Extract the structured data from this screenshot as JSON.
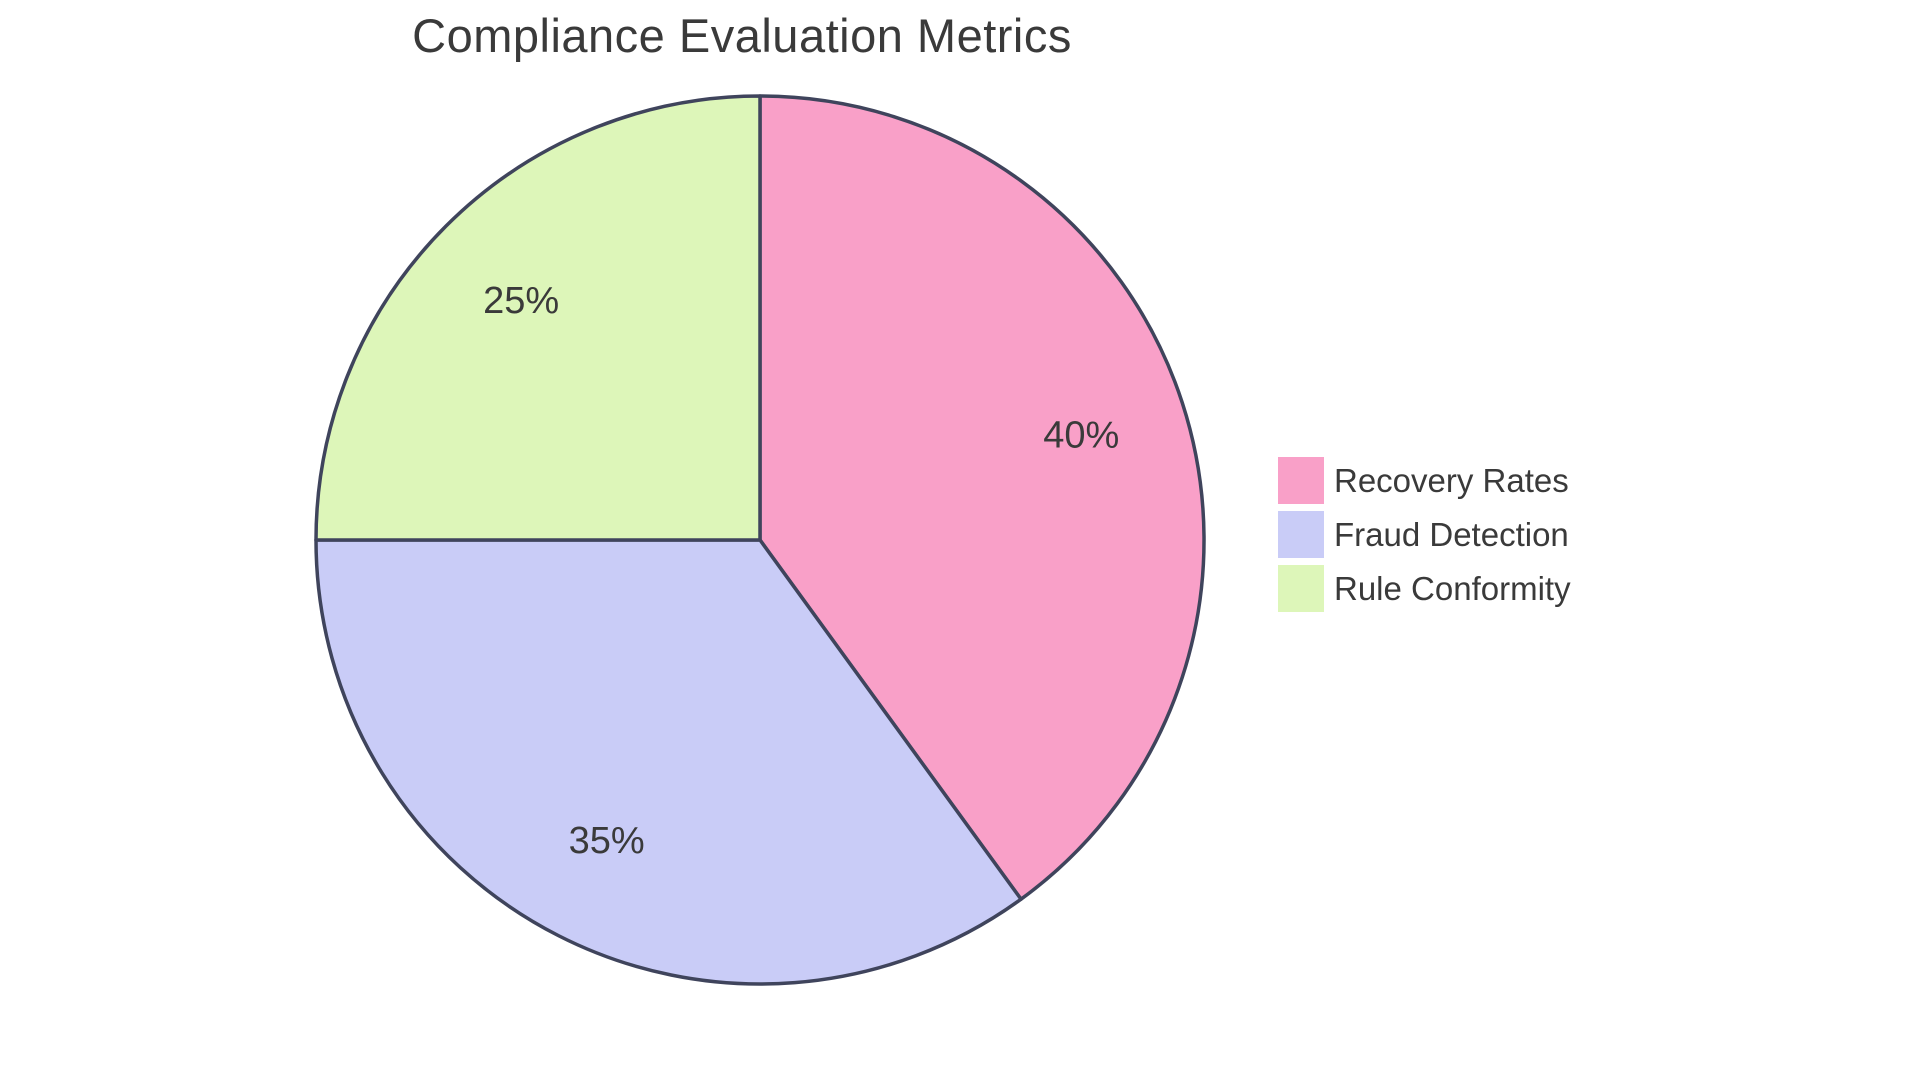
{
  "chart_data": {
    "type": "pie",
    "title": "Compliance Evaluation Metrics",
    "labels": [
      "Recovery Rates",
      "Fraud Detection",
      "Rule Conformity"
    ],
    "values": [
      40,
      35,
      25
    ],
    "value_labels": [
      "40%",
      "35%",
      "25%"
    ],
    "colors": [
      "#F9A0C8",
      "#C9CCF7",
      "#DDF6B9"
    ],
    "border_color": "#3F445C",
    "text_color": "#3A3A3A",
    "background": "#FFFFFF",
    "legend_position": "right",
    "start_angle": "top",
    "direction": "clockwise"
  }
}
